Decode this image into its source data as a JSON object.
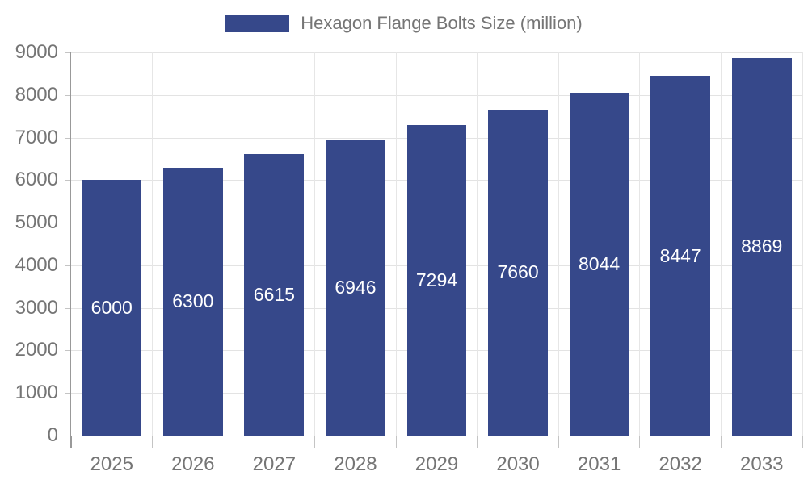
{
  "chart_data": {
    "type": "bar",
    "title": "",
    "legend": "Hexagon Flange Bolts Size (million)",
    "legend_position": "top",
    "categories": [
      "2025",
      "2026",
      "2027",
      "2028",
      "2029",
      "2030",
      "2031",
      "2032",
      "2033"
    ],
    "values": [
      6000,
      6300,
      6615,
      6946,
      7294,
      7660,
      8044,
      8447,
      8869
    ],
    "value_labels": [
      "6000",
      "6300",
      "6615",
      "6946",
      "7294",
      "7660",
      "8044",
      "8447",
      "8869"
    ],
    "xlabel": "",
    "ylabel": "",
    "ylim": [
      0,
      9000
    ],
    "ytick_step": 1000,
    "yticks": [
      "0",
      "1000",
      "2000",
      "3000",
      "4000",
      "5000",
      "6000",
      "7000",
      "8000",
      "9000"
    ],
    "grid": true,
    "bar_width_fraction": 0.735,
    "colors": {
      "bar": "#36488a",
      "bar_label": "#ffffff",
      "grid_line": "#e3e3e3",
      "baseline": "#c4c4c4",
      "vertical_split": "#e6e6e6",
      "axis_line": "#999999",
      "tick_mark": "#c4c4c4",
      "tick_text": "#757575",
      "legend_text": "#757575",
      "background": "#ffffff"
    }
  }
}
